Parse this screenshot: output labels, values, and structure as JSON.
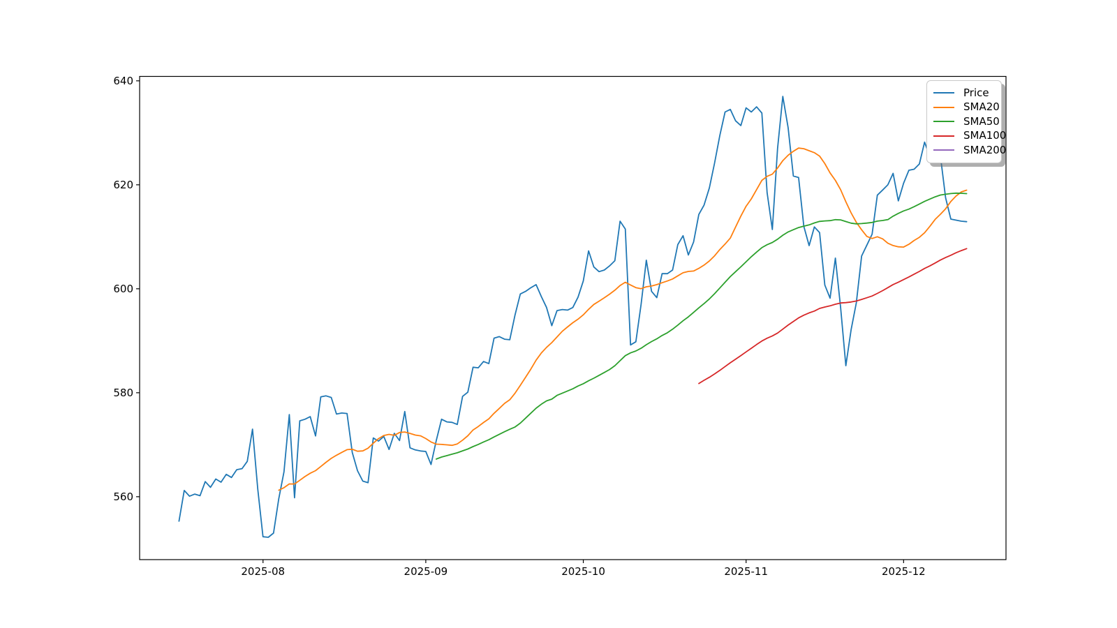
{
  "figure": {
    "background": "#ffffff"
  },
  "chart_data": {
    "type": "line",
    "title": "",
    "xlabel": "",
    "ylabel": "",
    "grid": false,
    "x_start_date": "2025-07-16",
    "x_end_date": "2025-12-13",
    "x_cadence": "daily",
    "n_points": 151,
    "ylim": [
      547.9,
      640.85
    ],
    "xlim_day_index": [
      -7.5,
      157.5
    ],
    "y_ticks": [
      560,
      580,
      600,
      620,
      640
    ],
    "x_ticks": [
      {
        "label": "2025-08",
        "day_index": 16
      },
      {
        "label": "2025-09",
        "day_index": 47
      },
      {
        "label": "2025-10",
        "day_index": 77
      },
      {
        "label": "2025-11",
        "day_index": 108
      },
      {
        "label": "2025-12",
        "day_index": 138
      }
    ],
    "series": [
      {
        "name": "Price",
        "color": "#1f77b4",
        "kind": "raw",
        "values": [
          555.3,
          561.2,
          560.1,
          560.5,
          560.2,
          562.9,
          561.8,
          563.4,
          562.8,
          564.3,
          563.7,
          565.2,
          565.4,
          566.8,
          573.0,
          561.5,
          552.3,
          552.2,
          553.0,
          559.6,
          564.8,
          575.8,
          559.8,
          574.6,
          574.9,
          575.4,
          571.7,
          579.2,
          579.4,
          579.1,
          575.9,
          576.1,
          576.0,
          568.5,
          565.0,
          563.0,
          562.7,
          571.3,
          570.7,
          571.6,
          569.1,
          572.2,
          570.8,
          576.4,
          569.4,
          569.0,
          568.8,
          568.7,
          566.2,
          570.8,
          574.9,
          574.4,
          574.3,
          573.9,
          579.3,
          580.1,
          584.9,
          584.8,
          586.0,
          585.6,
          590.5,
          590.8,
          590.3,
          590.2,
          595.0,
          599.0,
          599.5,
          600.2,
          600.8,
          598.5,
          596.4,
          592.9,
          595.8,
          596.0,
          595.9,
          596.4,
          598.4,
          601.5,
          607.3,
          604.2,
          603.3,
          603.6,
          604.4,
          605.4,
          613.0,
          611.5,
          589.2,
          589.8,
          597.0,
          605.5,
          599.5,
          598.3,
          602.9,
          602.9,
          603.6,
          608.5,
          610.2,
          606.5,
          609.0,
          614.3,
          616.1,
          619.4,
          624.2,
          629.5,
          634.0,
          634.5,
          632.3,
          631.4,
          634.8,
          634.0,
          635.0,
          633.8,
          618.5,
          611.4,
          627.0,
          637.0,
          631.0,
          621.7,
          621.4,
          612.0,
          608.3,
          611.9,
          610.8,
          600.7,
          598.2,
          605.9,
          596.4,
          585.2,
          592.1,
          597.3,
          606.3,
          608.4,
          610.5,
          618.0,
          619.0,
          620.0,
          622.2,
          616.9,
          620.3,
          622.8,
          623.0,
          624.0,
          628.2,
          625.4,
          625.0,
          625.6,
          617.5,
          613.4,
          613.2,
          613.0,
          612.9
        ]
      },
      {
        "name": "SMA20",
        "color": "#ff7f0e",
        "kind": "sma",
        "window": 20,
        "derived_from": "Price"
      },
      {
        "name": "SMA50",
        "color": "#2ca02c",
        "kind": "sma",
        "window": 50,
        "derived_from": "Price"
      },
      {
        "name": "SMA100",
        "color": "#d62728",
        "kind": "sma",
        "window": 100,
        "derived_from": "Price"
      },
      {
        "name": "SMA200",
        "color": "#9467bd",
        "kind": "sma",
        "window": 200,
        "derived_from": "Price"
      }
    ],
    "legend": {
      "position": "upper right",
      "entries": [
        {
          "label": "Price",
          "color": "#1f77b4"
        },
        {
          "label": "SMA20",
          "color": "#ff7f0e"
        },
        {
          "label": "SMA50",
          "color": "#2ca02c"
        },
        {
          "label": "SMA100",
          "color": "#d62728"
        },
        {
          "label": "SMA200",
          "color": "#9467bd"
        }
      ]
    }
  }
}
